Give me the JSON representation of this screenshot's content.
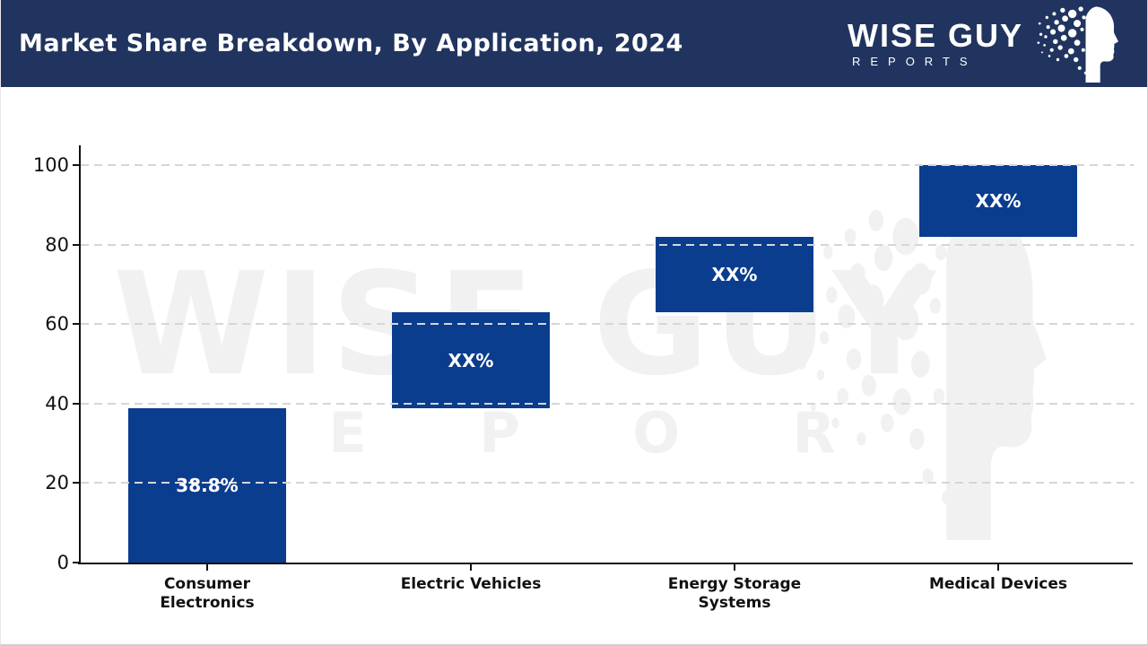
{
  "header": {
    "title": "Market Share Breakdown, By Application, 2024",
    "logo": {
      "line1": "WISE GUY",
      "line2": "REPORTS"
    }
  },
  "watermark": {
    "line1": "WISE GUY",
    "line2": "R E P O R T S"
  },
  "chart_data": {
    "type": "bar",
    "subtype": "waterfall",
    "title": "Market Share Breakdown, By Application, 2024",
    "categories": [
      "Consumer\nElectronics",
      "Electric Vehicles",
      "Energy Storage\nSystems",
      "Medical Devices"
    ],
    "segments": [
      {
        "category": "Consumer Electronics",
        "start": 0,
        "end": 38.8,
        "label": "38.8%"
      },
      {
        "category": "Electric Vehicles",
        "start": 38.8,
        "end": 63,
        "label": "XX%"
      },
      {
        "category": "Energy Storage Systems",
        "start": 63,
        "end": 82,
        "label": "XX%"
      },
      {
        "category": "Medical Devices",
        "start": 82,
        "end": 100,
        "label": "XX%"
      }
    ],
    "ylabel": "",
    "xlabel": "",
    "ylim": [
      0,
      105
    ],
    "yticks": [
      0,
      20,
      40,
      60,
      80,
      100
    ],
    "grid": "horizontal-dashed",
    "legend": "none",
    "bar_color": "#0b3d8f",
    "value_label_color": "#ffffff"
  },
  "colors": {
    "header_bg": "#21345f",
    "bar": "#0b3d8f",
    "grid": "#d6d6d6",
    "axis": "#111111",
    "watermark": "#f1f1f1"
  }
}
